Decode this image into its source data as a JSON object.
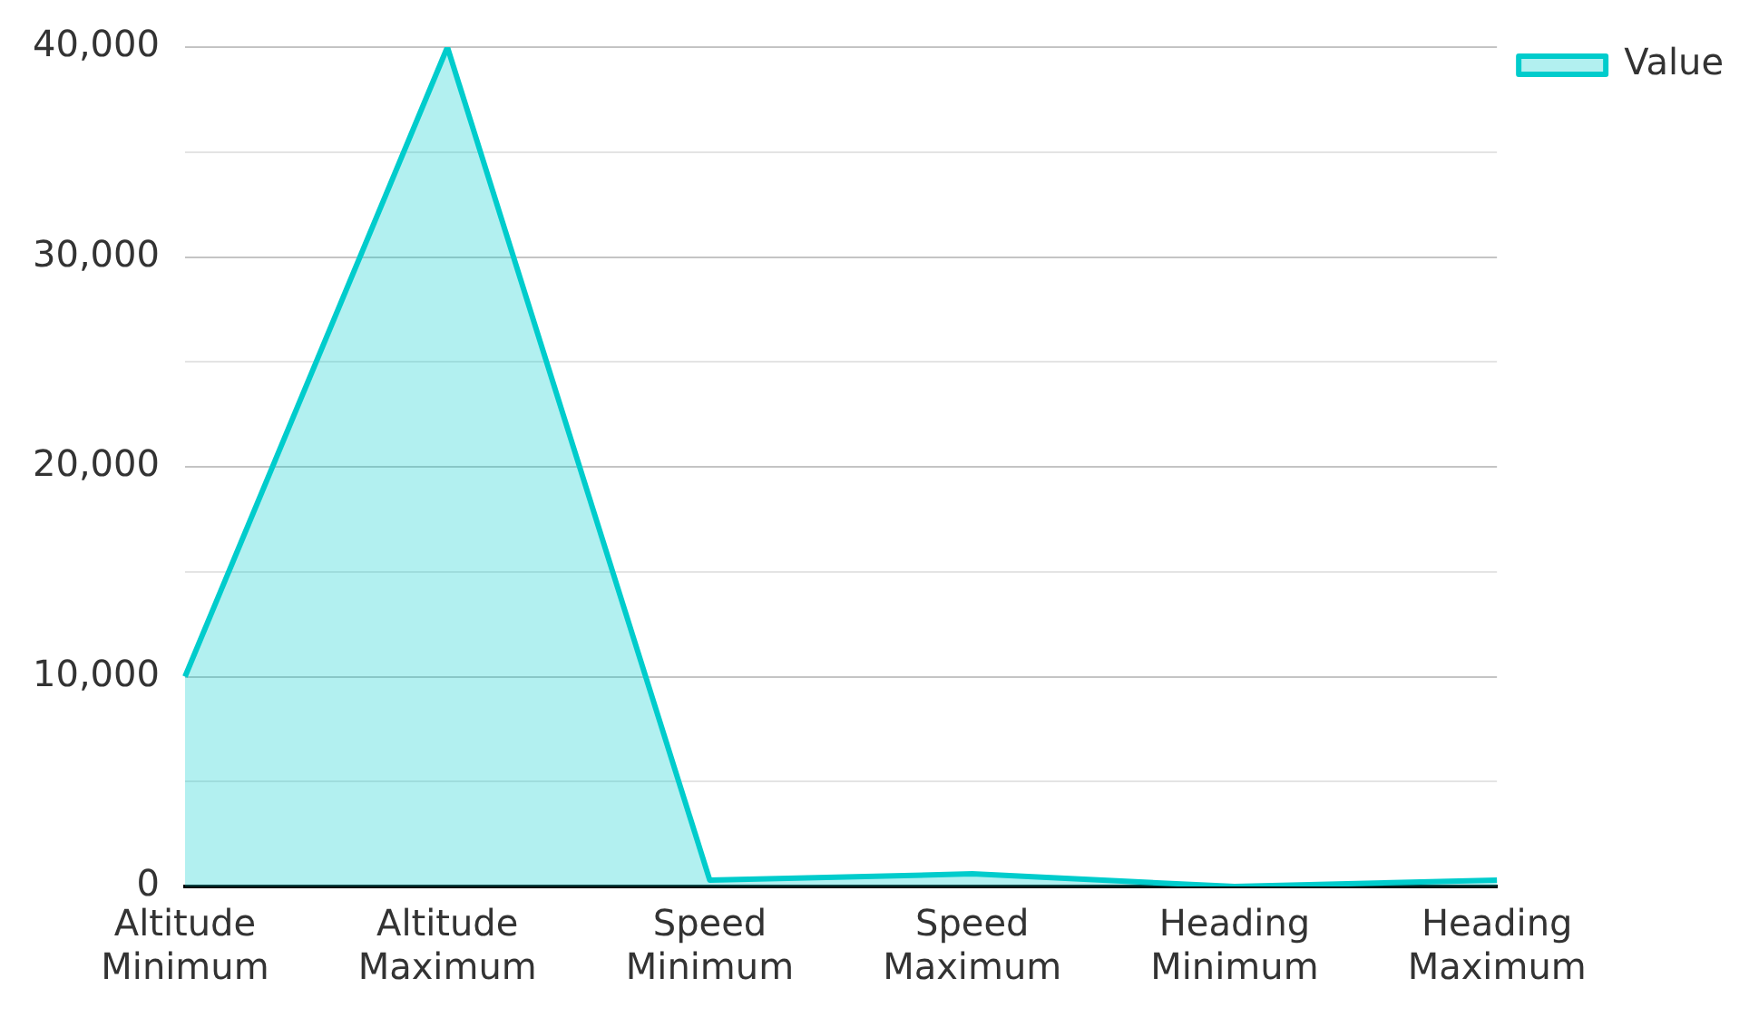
{
  "chart_data": {
    "type": "area",
    "categories": [
      "Altitude Minimum",
      "Altitude Maximum",
      "Speed Minimum",
      "Speed Maximum",
      "Heading Minimum",
      "Heading Maximum"
    ],
    "series": [
      {
        "name": "Value",
        "color": "#00cccc",
        "values": [
          10000,
          40000,
          300,
          600,
          0,
          300
        ]
      }
    ],
    "ylim": [
      0,
      40000
    ],
    "yticks": [
      0,
      {
        "value": 5000,
        "label": null
      },
      {
        "value": 10000,
        "label": "10,000"
      },
      {
        "value": 15000,
        "label": null
      },
      {
        "value": 20000,
        "label": "20,000"
      },
      {
        "value": 25000,
        "label": null
      },
      {
        "value": 30000,
        "label": "30,000"
      },
      {
        "value": 35000,
        "label": null
      },
      {
        "value": 40000,
        "label": "40,000"
      }
    ],
    "grid": "y",
    "legend": "top right"
  }
}
